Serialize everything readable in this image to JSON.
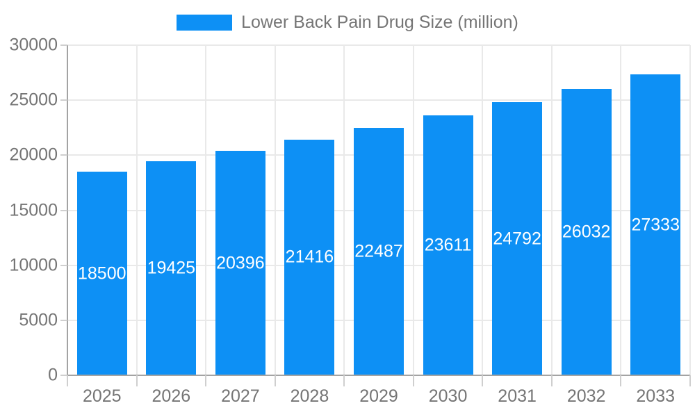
{
  "legend": {
    "label": "Lower Back Pain Drug Size (million)"
  },
  "colors": {
    "background": "#ffffff",
    "bar": "#0d90f5",
    "bar_label": "#ffffff",
    "axis_text": "#757575",
    "grid": "#e9e9e9",
    "axis_line": "#a3a3a3",
    "tick": "#cfcfcf"
  },
  "chart_data": {
    "type": "bar",
    "title": "Lower Back Pain Drug Size (million)",
    "categories": [
      "2025",
      "2026",
      "2027",
      "2028",
      "2029",
      "2030",
      "2031",
      "2032",
      "2033"
    ],
    "values": [
      18500,
      19425,
      20396,
      21416,
      22487,
      23611,
      24792,
      26032,
      27333
    ],
    "xlabel": "",
    "ylabel": "",
    "ylim": [
      0,
      30000
    ],
    "ytick_step": 5000,
    "ytick_labels": [
      "0",
      "5000",
      "10000",
      "15000",
      "20000",
      "25000",
      "30000"
    ],
    "grid": true,
    "legend_position": "top-center",
    "bar_label_position": "inside-middle"
  }
}
